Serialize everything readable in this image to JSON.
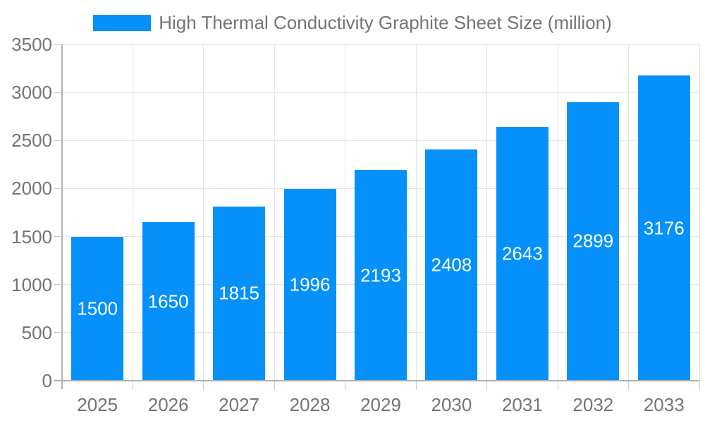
{
  "chart_data": {
    "type": "bar",
    "title": "High Thermal Conductivity Graphite Sheet Size (million)",
    "categories": [
      "2025",
      "2026",
      "2027",
      "2028",
      "2029",
      "2030",
      "2031",
      "2032",
      "2033"
    ],
    "values": [
      1500,
      1650,
      1815,
      1996,
      2193,
      2408,
      2643,
      2899,
      3176
    ],
    "xlabel": "",
    "ylabel": "",
    "ylim": [
      0,
      3500
    ],
    "yticks": [
      0,
      500,
      1000,
      1500,
      2000,
      2500,
      3000,
      3500
    ],
    "grid": true,
    "legend_position": "top-center",
    "value_label_position": "inside-center",
    "bar_color": "#0591f9",
    "value_label_color": "#ffffff"
  },
  "colors": {
    "bar": "#0591f9",
    "value_label_text": "#ffffff",
    "axis_text": "#757575",
    "legend_text": "#757575",
    "grid_line": "#e4e4e4",
    "axis_line": "#b0b0b0",
    "tick_line": "#cccccc",
    "background": "#ffffff"
  }
}
